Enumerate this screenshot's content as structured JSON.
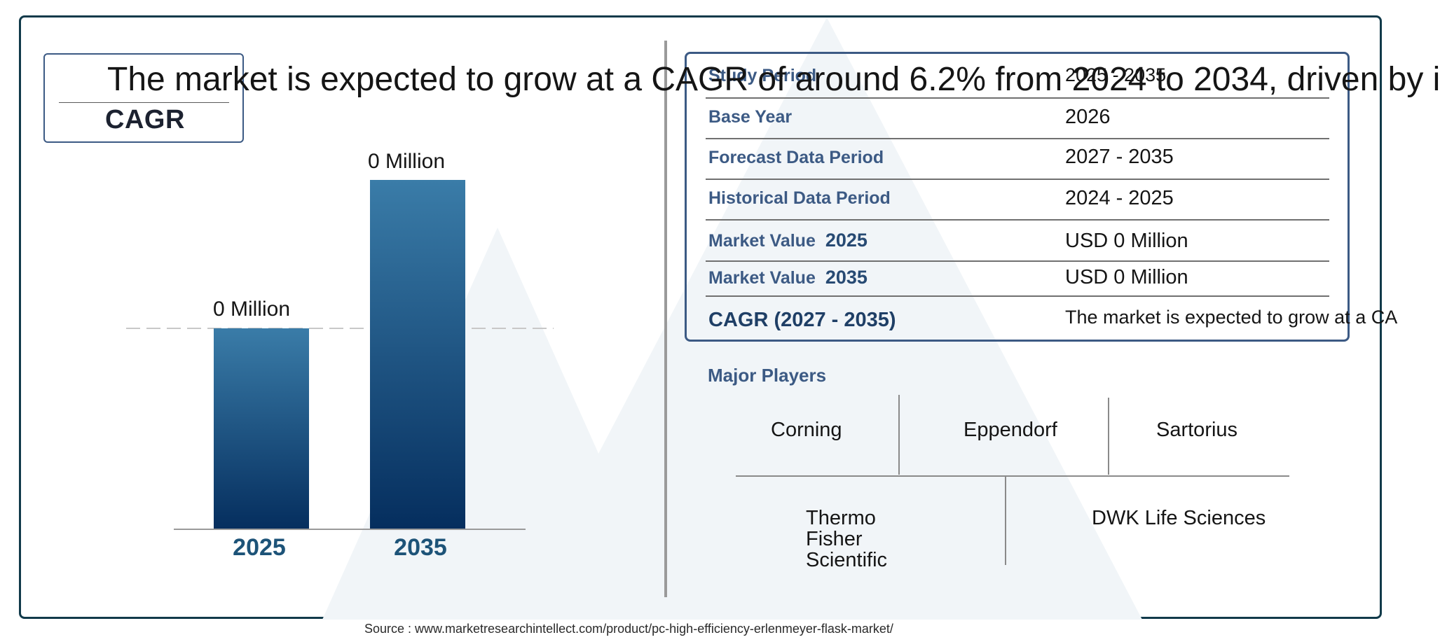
{
  "colors": {
    "frame": "#113a4a",
    "accent": "#3c5a84",
    "bar_top": "#3a7ca8",
    "bar_bottom": "#052e5e",
    "watermark": "#eef3f7"
  },
  "cagr_box": {
    "label": "CAGR",
    "text": "The market is expected to grow at a CAGR of around 6.2% from 2024 to 2034, driven by i"
  },
  "chart_data": {
    "type": "bar",
    "categories": [
      "2025",
      "2035"
    ],
    "values": [
      0,
      0
    ],
    "data_labels": [
      "0 Million",
      "0 Million"
    ],
    "title": "",
    "xlabel": "",
    "ylabel": "",
    "grid": false,
    "dashed_reference_line": true
  },
  "info_table": {
    "rows": [
      {
        "label": "Study Period",
        "value": "2025 - 2035"
      },
      {
        "label": "Base Year",
        "value": "2026"
      },
      {
        "label": "Forecast Data Period",
        "value": "2027 - 2035"
      },
      {
        "label": "Historical Data Period",
        "value": "2024 - 2025"
      },
      {
        "label": "Market Value",
        "year": "2025",
        "value": "USD 0 Million"
      },
      {
        "label": "Market Value",
        "year": "2035",
        "value": "USD 0 Million"
      },
      {
        "label": "CAGR (2027 - 2035)",
        "value": "The market is expected to grow at a CA"
      }
    ]
  },
  "players": {
    "title": "Major Players",
    "names": [
      "Corning",
      "Eppendorf",
      "Sartorius",
      "Thermo Fisher Scientific",
      "DWK Life Sciences"
    ]
  },
  "source": "Source : www.marketresearchintellect.com/product/pc-high-efficiency-erlenmeyer-flask-market/"
}
